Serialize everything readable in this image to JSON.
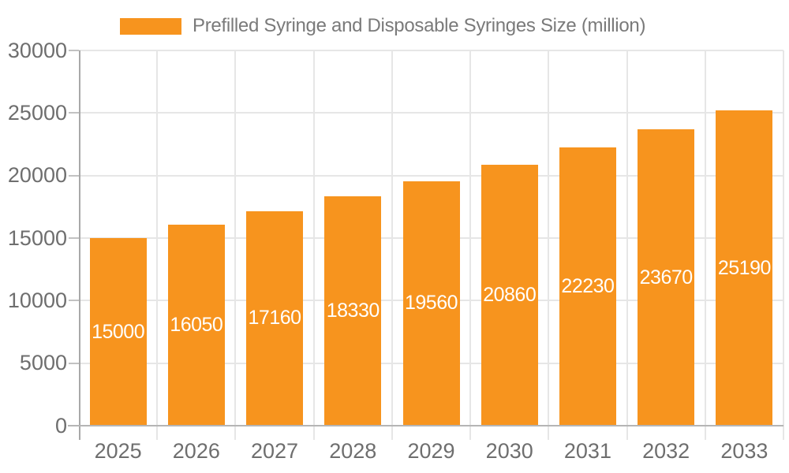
{
  "chart_data": {
    "type": "bar",
    "title": "Prefilled Syringe and Disposable Syringes Size (million)",
    "categories": [
      "2025",
      "2026",
      "2027",
      "2028",
      "2029",
      "2030",
      "2031",
      "2032",
      "2033"
    ],
    "series": [
      {
        "name": "Prefilled Syringe and Disposable Syringes Size (million)",
        "values": [
          15000,
          16050,
          17160,
          18330,
          19560,
          20860,
          22230,
          23670,
          25190
        ]
      }
    ],
    "xlabel": "",
    "ylabel": "",
    "ylim": [
      0,
      30000
    ],
    "yticks": [
      0,
      5000,
      10000,
      15000,
      20000,
      25000,
      30000
    ],
    "grid": true,
    "legend_position": "top",
    "bar_color": "#f7941e",
    "bar_label_color": "#ffffff",
    "axis_text_color": "#6e6e6e",
    "legend_text_color": "#7a7a7a",
    "gridline_color": "#e6e6e6"
  }
}
